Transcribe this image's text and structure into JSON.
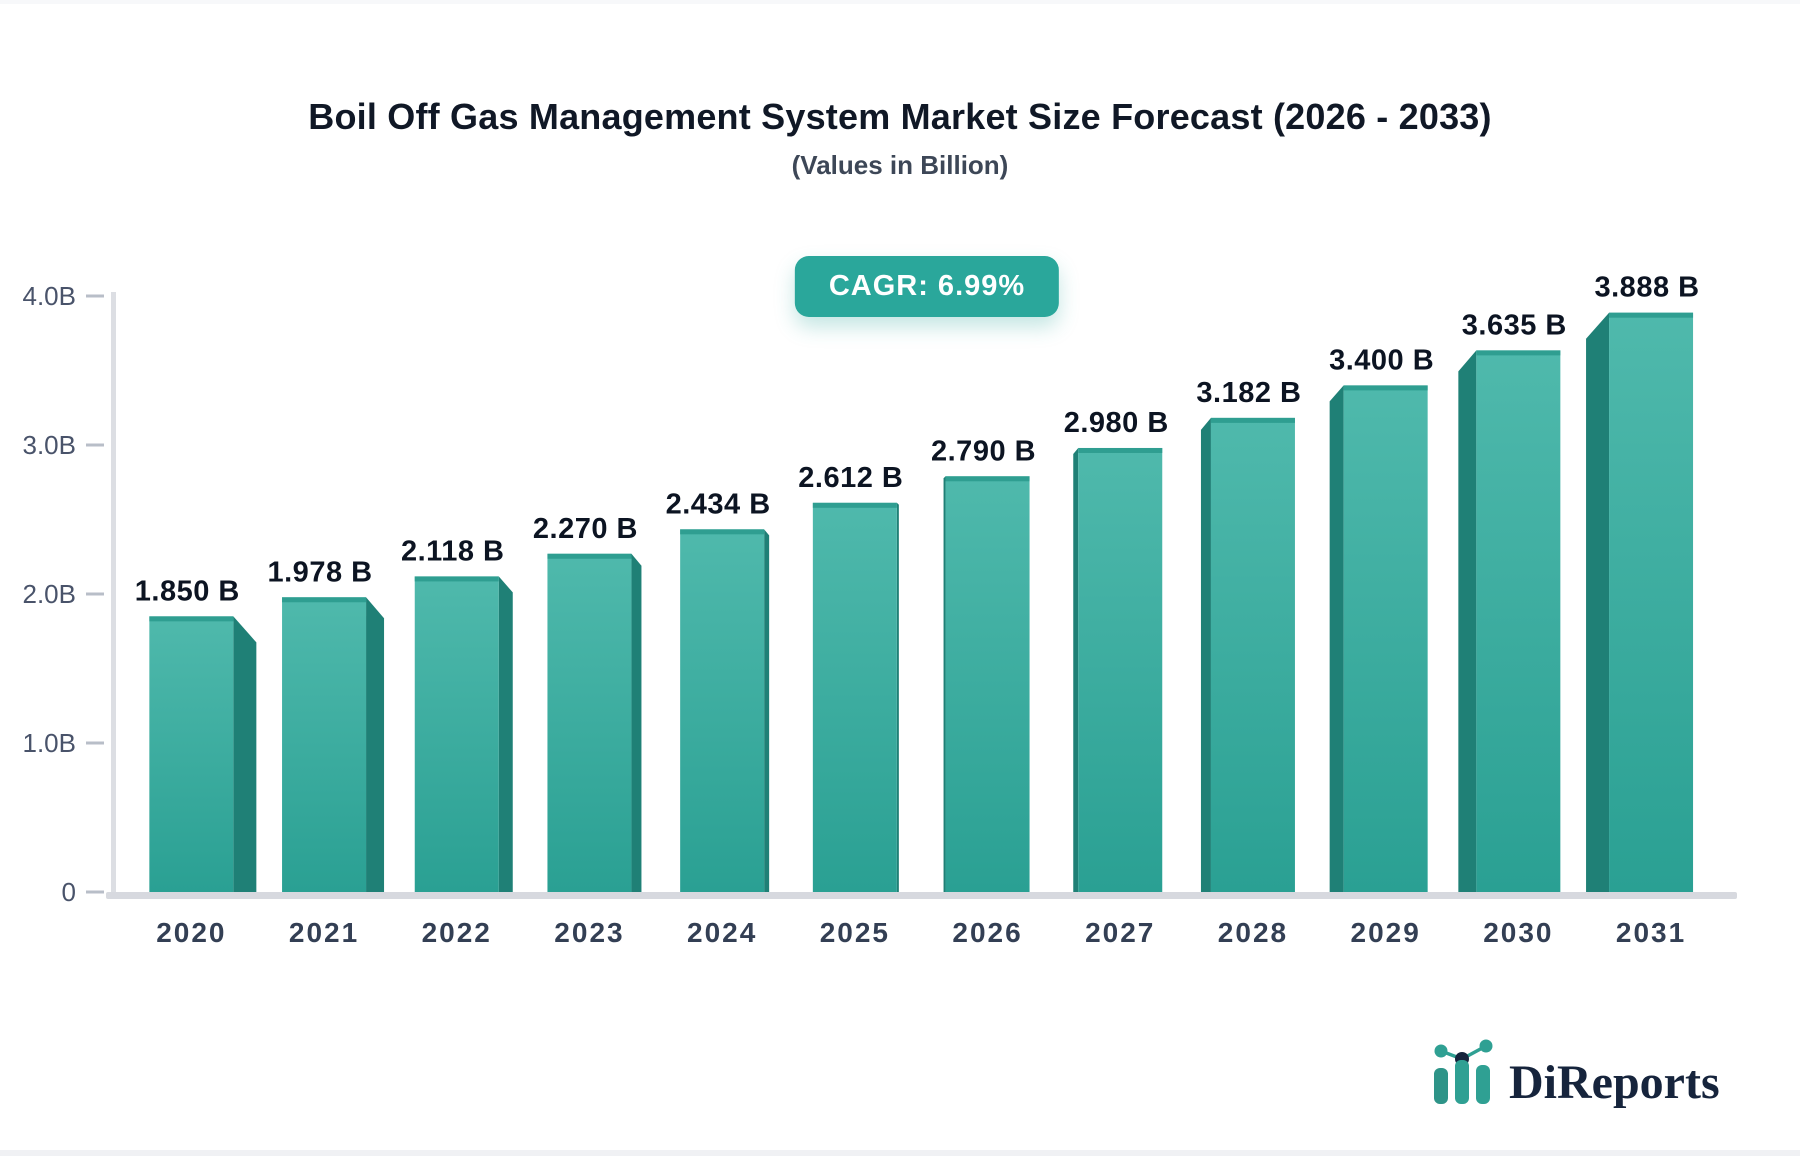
{
  "header": {
    "title": "Boil Off Gas Management System Market Size Forecast (2026 - 2033)",
    "subtitle": "(Values in Billion)"
  },
  "chart_data": {
    "type": "bar",
    "title": "Boil Off Gas Management System Market Size Forecast (2026 - 2033)",
    "subtitle": "(Values in Billion)",
    "categories": [
      "2020",
      "2021",
      "2022",
      "2023",
      "2024",
      "2025",
      "2026",
      "2027",
      "2028",
      "2029",
      "2030",
      "2031"
    ],
    "values": [
      1.85,
      1.978,
      2.118,
      2.27,
      2.434,
      2.612,
      2.79,
      2.98,
      3.182,
      3.4,
      3.635,
      3.888
    ],
    "value_labels": [
      "1.850 B",
      "1.978 B",
      "2.118 B",
      "2.270 B",
      "2.434 B",
      "2.612 B",
      "2.790 B",
      "2.980 B",
      "3.182 B",
      "3.400 B",
      "3.635 B",
      "3.888 B"
    ],
    "unit": "B",
    "xlabel": "",
    "ylabel": "",
    "ylim": [
      0,
      4
    ],
    "yticks": [
      {
        "value": 0,
        "label": "0"
      },
      {
        "value": 1,
        "label": "1.0B"
      },
      {
        "value": 2,
        "label": "2.0B"
      },
      {
        "value": 3,
        "label": "3.0B"
      },
      {
        "value": 4,
        "label": "4.0B"
      }
    ],
    "grid": false,
    "legend": false,
    "annotations": [
      {
        "text": "CAGR: 6.99%"
      }
    ],
    "colors": {
      "bar_face_top": "#4FB9AC",
      "bar_face_bottom": "#2AA093",
      "bar_side": "#1F8076",
      "bar_top_edge": "#2F9E91",
      "axis_line": "#DCDEE3",
      "baseline": "#D7D9DF",
      "tick_dash": "#B8BEC8",
      "badge_bg": "#2AA79B"
    }
  },
  "branding": {
    "logo_text": "DiReports",
    "logo_icon": "bar-chart-trend-icon",
    "navy": "#16243C",
    "teal": "#2FA093"
  }
}
